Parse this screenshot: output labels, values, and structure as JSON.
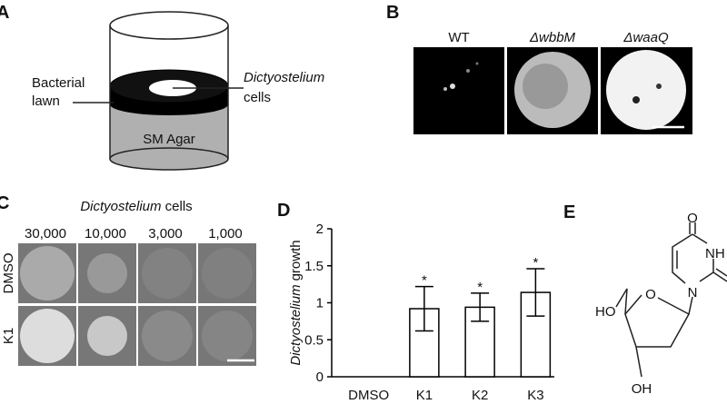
{
  "panel_a": {
    "label": "A",
    "lawn": [
      "Bacterial",
      "lawn"
    ],
    "cells": [
      "Dictyostelium",
      "cells"
    ],
    "agar": "SM Agar"
  },
  "panel_b": {
    "label": "B",
    "strains": [
      "WT",
      "ΔwbbM",
      "ΔwaaQ"
    ]
  },
  "panel_c": {
    "label": "C",
    "title": [
      "Dictyostelium",
      "cells"
    ],
    "counts": [
      "30,000",
      "10,000",
      "3,000",
      "1,000"
    ],
    "rows": [
      "DMSO",
      "K1"
    ]
  },
  "chart_data": {
    "type": "bar",
    "label": "D",
    "y_label": [
      "Dictyostelium",
      "growth"
    ],
    "categories": [
      "DMSO",
      "K1",
      "K2",
      "K3"
    ],
    "values": [
      0,
      0.92,
      0.94,
      1.14
    ],
    "errors": [
      0,
      0.3,
      0.19,
      0.32
    ],
    "significance": [
      null,
      "*",
      "*",
      "*"
    ],
    "color": "#ffffff",
    "edgecolor": "#000000",
    "ylim": [
      0,
      2
    ],
    "yticks": [
      0,
      0.5,
      1,
      1.5,
      2
    ]
  },
  "panel_e": {
    "label": "E",
    "atoms": [
      "O",
      "NH",
      "N",
      "HO",
      "O",
      "OH"
    ]
  }
}
